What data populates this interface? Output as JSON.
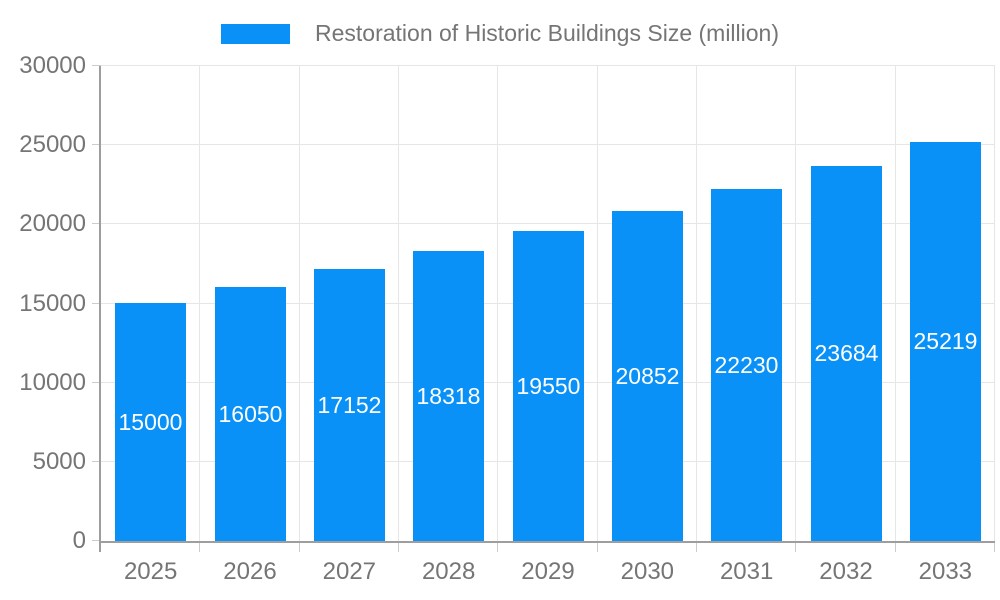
{
  "legend": {
    "label": "Restoration of Historic Buildings Size (million)"
  },
  "chart_data": {
    "type": "bar",
    "title": "Restoration of Historic Buildings Size (million)",
    "categories": [
      "2025",
      "2026",
      "2027",
      "2028",
      "2029",
      "2030",
      "2031",
      "2032",
      "2033"
    ],
    "values": [
      15000,
      16050,
      17152,
      18318,
      19550,
      20852,
      22230,
      23684,
      25219
    ],
    "xlabel": "",
    "ylabel": "",
    "ylim": [
      0,
      30000
    ],
    "yticks": [
      0,
      5000,
      10000,
      15000,
      20000,
      25000,
      30000
    ],
    "grid": true,
    "legend_position": "top-center",
    "bar_labels_inside": true,
    "colors": {
      "bar": "#0991f8",
      "bar_label": "#ffffff",
      "axis_text": "#757575",
      "gridline": "#e6e6e6",
      "axis_line": "#9e9e9e",
      "tick": "#cccccc",
      "background": "#ffffff"
    }
  }
}
